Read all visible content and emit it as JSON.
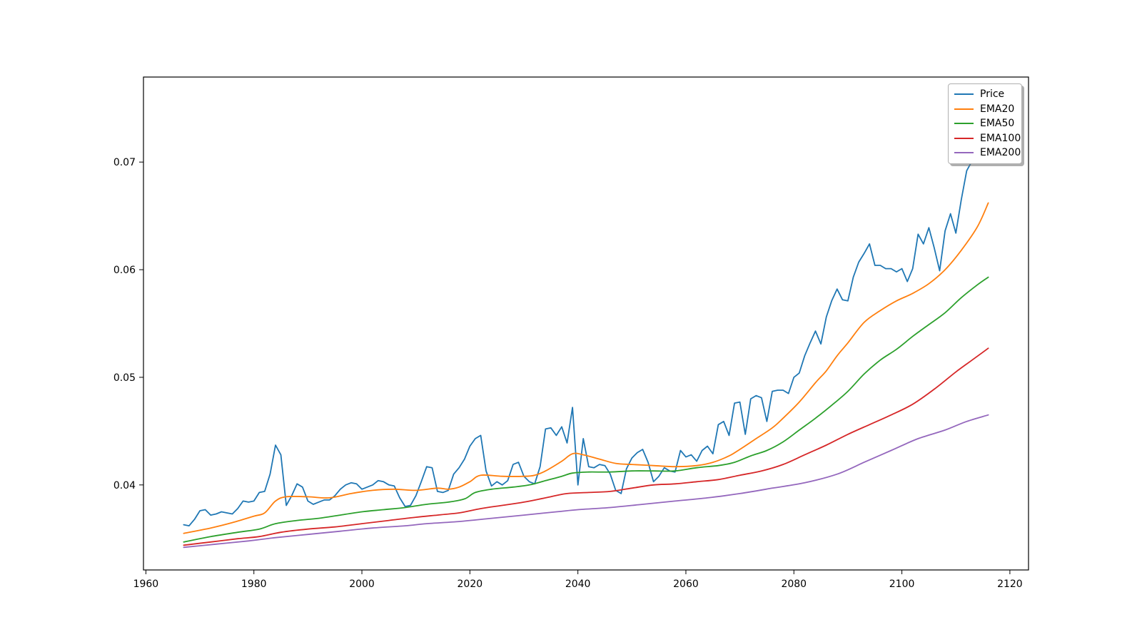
{
  "figure": {
    "background": "#ffffff"
  },
  "chart_data": {
    "type": "line",
    "title": "",
    "xlabel": "",
    "ylabel": "",
    "grid": false,
    "xlim": [
      1959.55,
      2123.45
    ],
    "ylim": [
      0.0321,
      0.0779
    ],
    "x_ticks": [
      1960,
      1980,
      2000,
      2020,
      2040,
      2060,
      2080,
      2100,
      2120
    ],
    "y_ticks": [
      0.04,
      0.05,
      0.06,
      0.07
    ],
    "y_tick_decimals": 2,
    "legend": {
      "position": "upper right",
      "entries": [
        "Price",
        "EMA20",
        "EMA50",
        "EMA100",
        "EMA200"
      ]
    },
    "series": [
      {
        "name": "Price",
        "color": "#1f77b4",
        "x_start": 1967,
        "x_step": 1,
        "y": [
          0.0363,
          0.0362,
          0.0368,
          0.0376,
          0.0377,
          0.0372,
          0.0373,
          0.0375,
          0.0374,
          0.0373,
          0.0378,
          0.0385,
          0.0384,
          0.0385,
          0.0393,
          0.0394,
          0.041,
          0.0437,
          0.0428,
          0.0381,
          0.039,
          0.0401,
          0.0398,
          0.0385,
          0.0382,
          0.0384,
          0.0386,
          0.0386,
          0.039,
          0.0396,
          0.04,
          0.0402,
          0.0401,
          0.0396,
          0.0398,
          0.04,
          0.0404,
          0.0403,
          0.04,
          0.0399,
          0.0388,
          0.038,
          0.0381,
          0.039,
          0.0403,
          0.0417,
          0.0416,
          0.0394,
          0.0393,
          0.0395,
          0.041,
          0.0416,
          0.0424,
          0.0436,
          0.0443,
          0.0446,
          0.0413,
          0.0399,
          0.0403,
          0.04,
          0.0404,
          0.0419,
          0.0421,
          0.0408,
          0.0403,
          0.0401,
          0.0417,
          0.0452,
          0.0453,
          0.0446,
          0.0454,
          0.0439,
          0.0472,
          0.04,
          0.0443,
          0.0417,
          0.0416,
          0.0419,
          0.0418,
          0.041,
          0.0395,
          0.0392,
          0.0415,
          0.0425,
          0.043,
          0.0433,
          0.0421,
          0.0403,
          0.0408,
          0.0416,
          0.0413,
          0.0412,
          0.0432,
          0.0426,
          0.0428,
          0.0422,
          0.0432,
          0.0436,
          0.0429,
          0.0456,
          0.0459,
          0.0446,
          0.0476,
          0.0477,
          0.0447,
          0.048,
          0.0483,
          0.0481,
          0.0459,
          0.0487,
          0.0488,
          0.0488,
          0.0485,
          0.05,
          0.0504,
          0.052,
          0.0532,
          0.0543,
          0.0531,
          0.0556,
          0.0571,
          0.0582,
          0.0572,
          0.0571,
          0.0593,
          0.0607,
          0.0615,
          0.0624,
          0.0604,
          0.0604,
          0.0601,
          0.0601,
          0.0598,
          0.0601,
          0.0589,
          0.0601,
          0.0633,
          0.0624,
          0.0639,
          0.062,
          0.0599,
          0.0636,
          0.0652,
          0.0634,
          0.0665,
          0.0692,
          0.0701,
          0.0703,
          0.072,
          0.0758
        ]
      },
      {
        "name": "EMA20",
        "color": "#ff7f0e",
        "points": [
          [
            1967,
            0.0355
          ],
          [
            1972,
            0.036
          ],
          [
            1976,
            0.0365
          ],
          [
            1980,
            0.0371
          ],
          [
            1982,
            0.0374
          ],
          [
            1984,
            0.0385
          ],
          [
            1986,
            0.0389
          ],
          [
            1990,
            0.0389
          ],
          [
            1994,
            0.0388
          ],
          [
            1998,
            0.0392
          ],
          [
            2002,
            0.0395
          ],
          [
            2006,
            0.0396
          ],
          [
            2010,
            0.0395
          ],
          [
            2014,
            0.0397
          ],
          [
            2016,
            0.0396
          ],
          [
            2018,
            0.0398
          ],
          [
            2020,
            0.0403
          ],
          [
            2022,
            0.0409
          ],
          [
            2026,
            0.0408
          ],
          [
            2030,
            0.0408
          ],
          [
            2032,
            0.0409
          ],
          [
            2034,
            0.0413
          ],
          [
            2037,
            0.0422
          ],
          [
            2039,
            0.0429
          ],
          [
            2041,
            0.0428
          ],
          [
            2044,
            0.0424
          ],
          [
            2047,
            0.042
          ],
          [
            2050,
            0.0419
          ],
          [
            2054,
            0.0418
          ],
          [
            2058,
            0.0417
          ],
          [
            2062,
            0.0418
          ],
          [
            2065,
            0.0421
          ],
          [
            2068,
            0.0427
          ],
          [
            2070,
            0.0433
          ],
          [
            2073,
            0.0443
          ],
          [
            2076,
            0.0453
          ],
          [
            2078,
            0.0462
          ],
          [
            2081,
            0.0477
          ],
          [
            2084,
            0.0495
          ],
          [
            2086,
            0.0506
          ],
          [
            2088,
            0.052
          ],
          [
            2090,
            0.0532
          ],
          [
            2093,
            0.0551
          ],
          [
            2096,
            0.0562
          ],
          [
            2099,
            0.0571
          ],
          [
            2102,
            0.0578
          ],
          [
            2105,
            0.0587
          ],
          [
            2108,
            0.06
          ],
          [
            2111,
            0.0618
          ],
          [
            2114,
            0.064
          ],
          [
            2116,
            0.0662
          ]
        ]
      },
      {
        "name": "EMA50",
        "color": "#2ca02c",
        "points": [
          [
            1967,
            0.0347
          ],
          [
            1972,
            0.0352
          ],
          [
            1977,
            0.0356
          ],
          [
            1981,
            0.0359
          ],
          [
            1984,
            0.0364
          ],
          [
            1988,
            0.0367
          ],
          [
            1992,
            0.0369
          ],
          [
            1996,
            0.0372
          ],
          [
            2000,
            0.0375
          ],
          [
            2004,
            0.0377
          ],
          [
            2008,
            0.0379
          ],
          [
            2012,
            0.0382
          ],
          [
            2016,
            0.0384
          ],
          [
            2019,
            0.0387
          ],
          [
            2021,
            0.0393
          ],
          [
            2024,
            0.0396
          ],
          [
            2028,
            0.0398
          ],
          [
            2031,
            0.04
          ],
          [
            2034,
            0.0404
          ],
          [
            2037,
            0.0408
          ],
          [
            2039,
            0.0411
          ],
          [
            2042,
            0.0412
          ],
          [
            2046,
            0.0412
          ],
          [
            2050,
            0.0413
          ],
          [
            2054,
            0.0413
          ],
          [
            2058,
            0.0413
          ],
          [
            2062,
            0.0416
          ],
          [
            2066,
            0.0418
          ],
          [
            2069,
            0.0421
          ],
          [
            2072,
            0.0427
          ],
          [
            2075,
            0.0432
          ],
          [
            2078,
            0.044
          ],
          [
            2081,
            0.0451
          ],
          [
            2084,
            0.0462
          ],
          [
            2087,
            0.0474
          ],
          [
            2090,
            0.0487
          ],
          [
            2093,
            0.0503
          ],
          [
            2096,
            0.0516
          ],
          [
            2099,
            0.0526
          ],
          [
            2102,
            0.0538
          ],
          [
            2105,
            0.0549
          ],
          [
            2108,
            0.056
          ],
          [
            2111,
            0.0574
          ],
          [
            2114,
            0.0586
          ],
          [
            2116,
            0.0593
          ]
        ]
      },
      {
        "name": "EMA100",
        "color": "#d62728",
        "points": [
          [
            1967,
            0.0344
          ],
          [
            1972,
            0.0347
          ],
          [
            1977,
            0.035
          ],
          [
            1981,
            0.0352
          ],
          [
            1985,
            0.0356
          ],
          [
            1990,
            0.0359
          ],
          [
            1995,
            0.0361
          ],
          [
            2000,
            0.0364
          ],
          [
            2005,
            0.0367
          ],
          [
            2010,
            0.037
          ],
          [
            2014,
            0.0372
          ],
          [
            2018,
            0.0374
          ],
          [
            2022,
            0.0378
          ],
          [
            2026,
            0.0381
          ],
          [
            2030,
            0.0384
          ],
          [
            2034,
            0.0388
          ],
          [
            2038,
            0.0392
          ],
          [
            2042,
            0.0393
          ],
          [
            2046,
            0.0394
          ],
          [
            2050,
            0.0397
          ],
          [
            2054,
            0.04
          ],
          [
            2058,
            0.0401
          ],
          [
            2062,
            0.0403
          ],
          [
            2066,
            0.0405
          ],
          [
            2070,
            0.0409
          ],
          [
            2074,
            0.0413
          ],
          [
            2078,
            0.0419
          ],
          [
            2082,
            0.0428
          ],
          [
            2086,
            0.0437
          ],
          [
            2090,
            0.0447
          ],
          [
            2094,
            0.0456
          ],
          [
            2098,
            0.0465
          ],
          [
            2102,
            0.0475
          ],
          [
            2106,
            0.0489
          ],
          [
            2110,
            0.0505
          ],
          [
            2113,
            0.0516
          ],
          [
            2116,
            0.0527
          ]
        ]
      },
      {
        "name": "EMA200",
        "color": "#9467bd",
        "points": [
          [
            1967,
            0.0342
          ],
          [
            1973,
            0.0345
          ],
          [
            1979,
            0.0348
          ],
          [
            1984,
            0.0351
          ],
          [
            1990,
            0.0354
          ],
          [
            1996,
            0.0357
          ],
          [
            2002,
            0.036
          ],
          [
            2008,
            0.0362
          ],
          [
            2012,
            0.0364
          ],
          [
            2018,
            0.0366
          ],
          [
            2024,
            0.0369
          ],
          [
            2030,
            0.0372
          ],
          [
            2036,
            0.0375
          ],
          [
            2040,
            0.0377
          ],
          [
            2046,
            0.0379
          ],
          [
            2052,
            0.0382
          ],
          [
            2058,
            0.0385
          ],
          [
            2064,
            0.0388
          ],
          [
            2070,
            0.0392
          ],
          [
            2076,
            0.0397
          ],
          [
            2082,
            0.0402
          ],
          [
            2088,
            0.041
          ],
          [
            2093,
            0.0421
          ],
          [
            2098,
            0.0432
          ],
          [
            2103,
            0.0443
          ],
          [
            2108,
            0.0451
          ],
          [
            2112,
            0.0459
          ],
          [
            2116,
            0.0465
          ]
        ]
      }
    ]
  }
}
